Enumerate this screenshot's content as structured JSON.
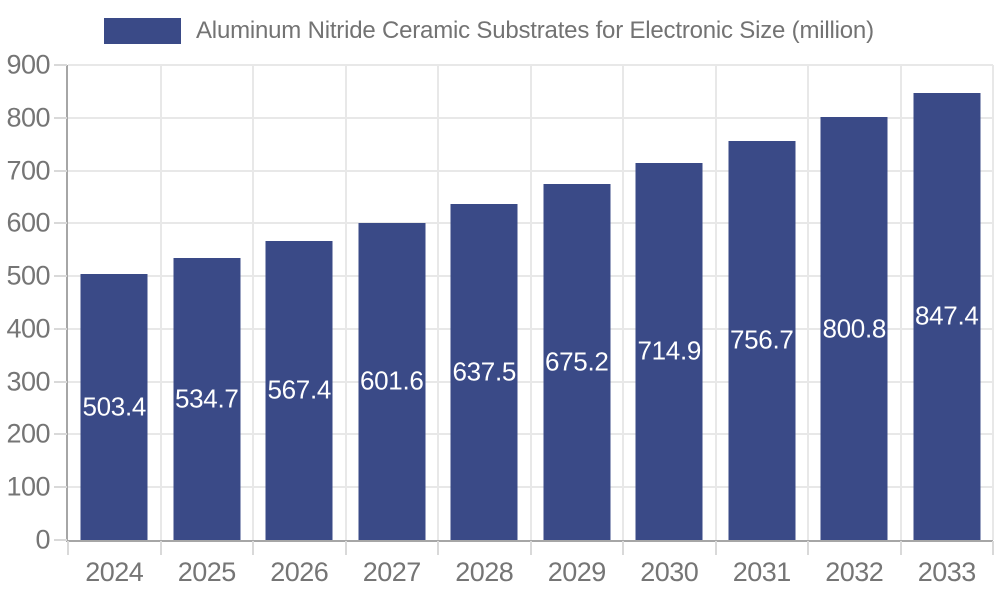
{
  "chart_data": {
    "type": "bar",
    "title": "Aluminum Nitride Ceramic Substrates for Electronic Size (million)",
    "categories": [
      "2024",
      "2025",
      "2026",
      "2027",
      "2028",
      "2029",
      "2030",
      "2031",
      "2032",
      "2033"
    ],
    "values": [
      503.4,
      534.7,
      567.4,
      601.6,
      637.5,
      675.2,
      714.9,
      756.7,
      800.8,
      847.4
    ],
    "value_labels": [
      "503.4",
      "534.7",
      "567.4",
      "601.6",
      "637.5",
      "675.2",
      "714.9",
      "756.7",
      "800.8",
      "847.4"
    ],
    "xlabel": "",
    "ylabel": "",
    "ylim": [
      0,
      900
    ],
    "ytick_step": 100,
    "grid": true,
    "legend_position": "top-left",
    "value_labels_position": "center-of-bar"
  },
  "legend": {
    "label": "Aluminum Nitride Ceramic Substrates for Electronic Size (million)"
  },
  "colors": {
    "bar": "#3A4A87",
    "grid": "#e8e8e8",
    "axis": "#a6a6a6",
    "tick": "#d9d9d9",
    "tick_text": "#757575",
    "legend_text": "#737373",
    "value_text": "#ffffff",
    "background": "#ffffff"
  }
}
